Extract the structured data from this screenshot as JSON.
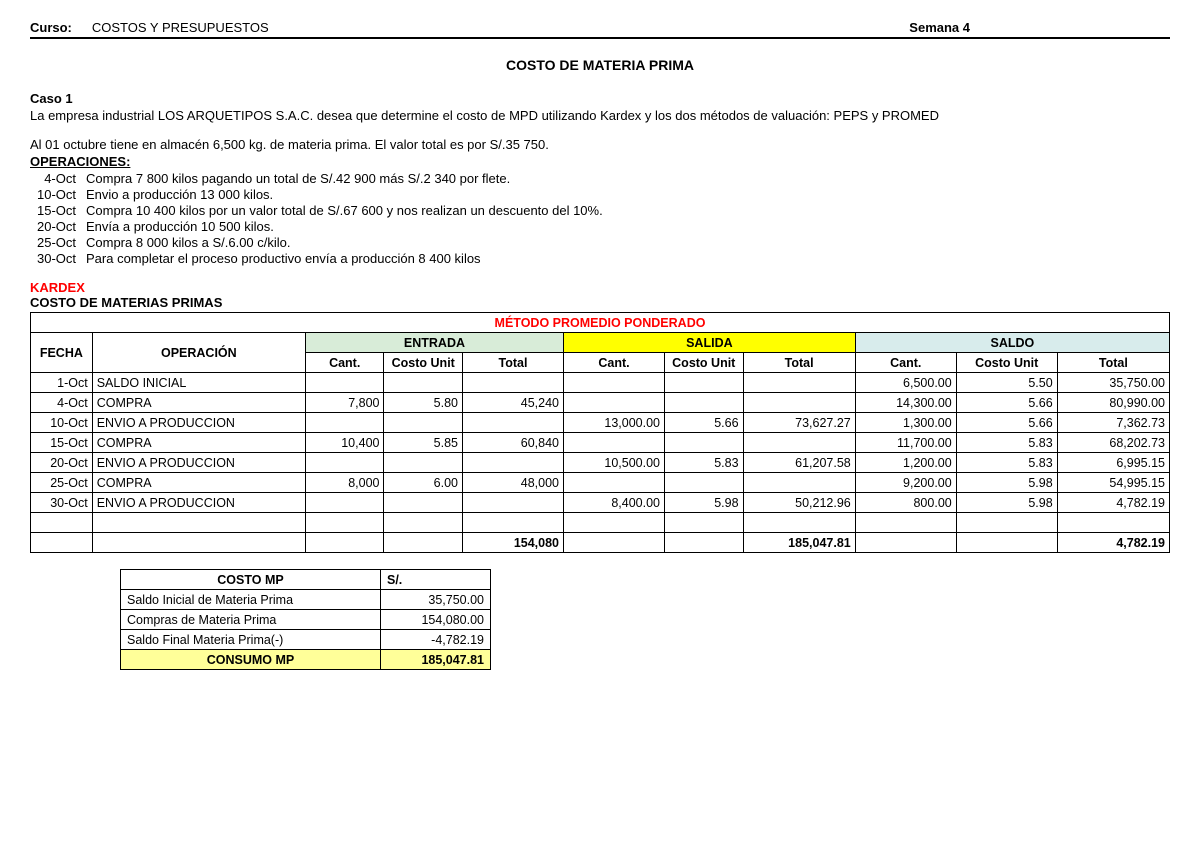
{
  "header": {
    "curso_label": "Curso:",
    "curso_value": "COSTOS Y PRESUPUESTOS",
    "semana": "Semana 4"
  },
  "title": "COSTO DE MATERIA PRIMA",
  "case": {
    "label": "Caso 1",
    "desc": "La empresa industrial LOS ARQUETIPOS S.A.C. desea que determine el costo de MPD utilizando Kardex y los dos métodos de valuación: PEPS y PROMED",
    "intro": "Al 01 octubre tiene en almacén 6,500 kg. de materia prima. El valor total es por S/.35 750.",
    "ops_label": "OPERACIONES:",
    "ops": [
      {
        "d": "4-Oct",
        "t": "Compra 7 800 kilos pagando un total de S/.42 900 más S/.2 340 por flete."
      },
      {
        "d": "10-Oct",
        "t": "Envio a producción 13 000 kilos."
      },
      {
        "d": "15-Oct",
        "t": "Compra 10 400 kilos por un valor total de S/.67 600 y nos realizan un descuento del 10%."
      },
      {
        "d": "20-Oct",
        "t": "Envía a producción 10 500 kilos."
      },
      {
        "d": "25-Oct",
        "t": "Compra 8 000 kilos a S/.6.00 c/kilo."
      },
      {
        "d": "30-Oct",
        "t": "Para completar el proceso productivo envía a producción 8 400 kilos"
      }
    ]
  },
  "kardex": {
    "label": "KARDEX",
    "sub": "COSTO DE MATERIAS PRIMAS",
    "method": "MÉTODO  PROMEDIO PONDERADO",
    "colgroups": {
      "entrada": "ENTRADA",
      "salida": "SALIDA",
      "saldo": "SALDO"
    },
    "cols": {
      "fecha": "FECHA",
      "oper": "OPERACIÓN",
      "cant": "Cant.",
      "cu": "Costo Unit",
      "cu2": "Costo Unit",
      "total": "Total"
    },
    "rows": [
      {
        "fecha": "1-Oct",
        "oper": "SALDO INICIAL",
        "e_cant": "",
        "e_cu": "",
        "e_tot": "",
        "s_cant": "",
        "s_cu": "",
        "s_tot": "",
        "b_cant": "6,500.00",
        "b_cu": "5.50",
        "b_tot": "35,750.00"
      },
      {
        "fecha": "4-Oct",
        "oper": "COMPRA",
        "e_cant": "7,800",
        "e_cu": "5.80",
        "e_tot": "45,240",
        "s_cant": "",
        "s_cu": "",
        "s_tot": "",
        "b_cant": "14,300.00",
        "b_cu": "5.66",
        "b_tot": "80,990.00"
      },
      {
        "fecha": "10-Oct",
        "oper": "ENVIO A PRODUCCION",
        "e_cant": "",
        "e_cu": "",
        "e_tot": "",
        "s_cant": "13,000.00",
        "s_cu": "5.66",
        "s_tot": "73,627.27",
        "b_cant": "1,300.00",
        "b_cu": "5.66",
        "b_tot": "7,362.73"
      },
      {
        "fecha": "15-Oct",
        "oper": "COMPRA",
        "e_cant": "10,400",
        "e_cu": "5.85",
        "e_tot": "60,840",
        "s_cant": "",
        "s_cu": "",
        "s_tot": "",
        "b_cant": "11,700.00",
        "b_cu": "5.83",
        "b_tot": "68,202.73"
      },
      {
        "fecha": "20-Oct",
        "oper": "ENVIO A PRODUCCION",
        "e_cant": "",
        "e_cu": "",
        "e_tot": "",
        "s_cant": "10,500.00",
        "s_cu": "5.83",
        "s_tot": "61,207.58",
        "b_cant": "1,200.00",
        "b_cu": "5.83",
        "b_tot": "6,995.15"
      },
      {
        "fecha": "25-Oct",
        "oper": "COMPRA",
        "e_cant": "8,000",
        "e_cu": "6.00",
        "e_tot": "48,000",
        "s_cant": "",
        "s_cu": "",
        "s_tot": "",
        "b_cant": "9,200.00",
        "b_cu": "5.98",
        "b_tot": "54,995.15"
      },
      {
        "fecha": "30-Oct",
        "oper": "ENVIO A PRODUCCION",
        "e_cant": "",
        "e_cu": "",
        "e_tot": "",
        "s_cant": "8,400.00",
        "s_cu": "5.98",
        "s_tot": "50,212.96",
        "b_cant": "800.00",
        "b_cu": "5.98",
        "b_tot": "4,782.19"
      }
    ],
    "totals": {
      "e_tot": "154,080",
      "s_tot": "185,047.81",
      "b_tot": "4,782.19"
    }
  },
  "summary": {
    "title": "COSTO   MP",
    "currency": "S/.",
    "rows": [
      {
        "label": "Saldo Inicial de Materia Prima",
        "value": "35,750.00"
      },
      {
        "label": "Compras de Materia Prima",
        "value": "154,080.00"
      },
      {
        "label": "Saldo Final Materia Prima(-)",
        "value": "-4,782.19"
      }
    ],
    "consumo_label": "CONSUMO  MP",
    "consumo_value": "185,047.81"
  },
  "colors": {
    "red": "#ff0000",
    "entrada_bg": "#d8ecd8",
    "salida_bg": "#ffff00",
    "saldo_bg": "#d8ecec",
    "highlight_bg": "#ffff99"
  }
}
